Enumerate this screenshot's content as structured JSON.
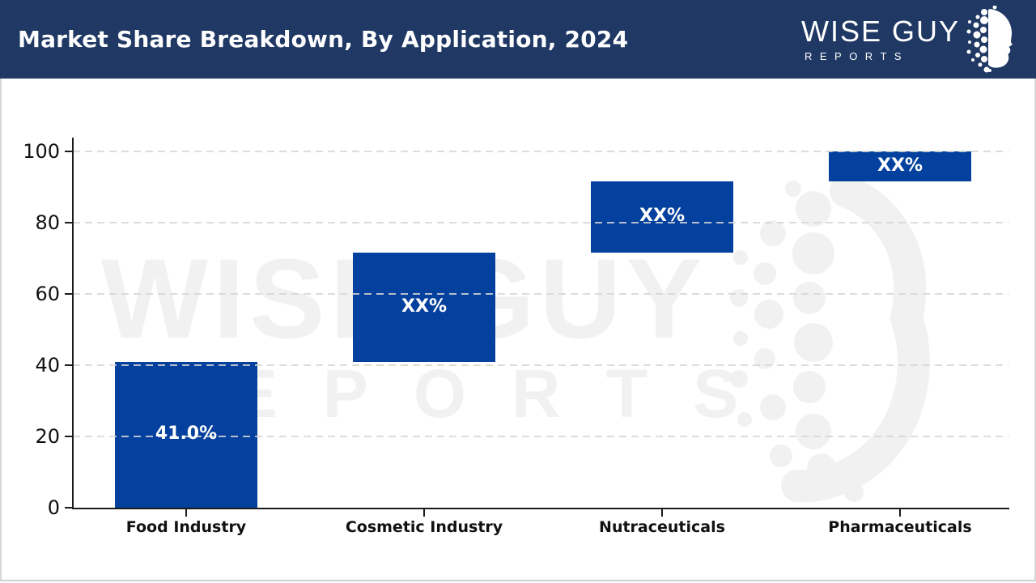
{
  "header": {
    "title": "Market Share Breakdown, By Application, 2024",
    "logo": {
      "wordmark": "WISE GUY",
      "subtext": "REPORTS"
    }
  },
  "watermark": {
    "line1": "WISE GUY",
    "line2": "REPORTS"
  },
  "chart_data": {
    "type": "bar",
    "subtype": "waterfall",
    "title": "Market Share Breakdown, By Application, 2024",
    "categories": [
      "Food Industry",
      "Cosmetic Industry",
      "Nutraceuticals",
      "Pharmaceuticals"
    ],
    "segments": [
      {
        "category": "Food Industry",
        "start": 0,
        "end": 41,
        "label": "41.0%"
      },
      {
        "category": "Cosmetic Industry",
        "start": 41,
        "end": 71.5,
        "label": "XX%"
      },
      {
        "category": "Nutraceuticals",
        "start": 71.5,
        "end": 91.5,
        "label": "XX%"
      },
      {
        "category": "Pharmaceuticals",
        "start": 91.5,
        "end": 100,
        "label": "XX%"
      }
    ],
    "xlabel": "",
    "ylabel": "",
    "ylim": [
      0,
      100
    ],
    "yticks": [
      0,
      20,
      40,
      60,
      80,
      100
    ],
    "grid": "horizontal-dashed",
    "legend": "none",
    "colors": {
      "bar": "#04409d",
      "bar_label": "#ffffff",
      "axis": "#1c1c1c",
      "grid": "#d6d6d6",
      "header_bg": "#1f3864",
      "watermark": "#f1f1f1"
    }
  }
}
